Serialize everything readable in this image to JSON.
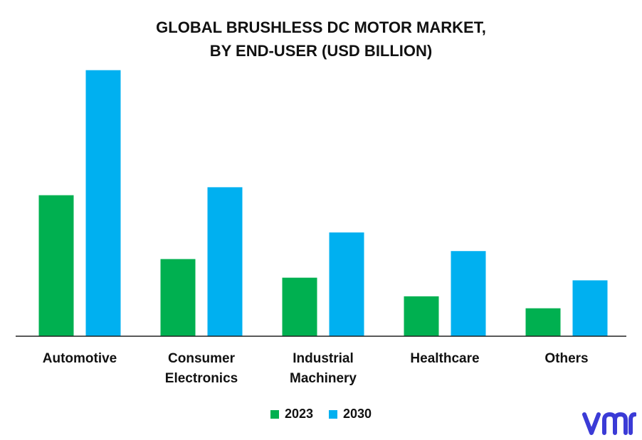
{
  "chart_data": {
    "type": "bar",
    "title_lines": [
      "GLOBAL BRUSHLESS DC MOTOR MARKET,",
      "BY END-USER (USD BILLION)"
    ],
    "categories": [
      [
        "Automotive"
      ],
      [
        "Consumer",
        "Electronics"
      ],
      [
        "Industrial",
        "Machinery"
      ],
      [
        "Healthcare"
      ],
      [
        "Others"
      ]
    ],
    "series": [
      {
        "name": "2023",
        "color": "#00b050",
        "values": [
          5.3,
          2.9,
          2.2,
          1.5,
          1.05
        ]
      },
      {
        "name": "2030",
        "color": "#00b0f0",
        "values": [
          10.0,
          5.6,
          3.9,
          3.2,
          2.1
        ]
      }
    ],
    "ylim": [
      0,
      10.5
    ],
    "axis_visible": false,
    "gridlines": false,
    "legend_position": "bottom-center"
  },
  "logo": {
    "text": "vmr",
    "color": "#3b3bd6"
  }
}
